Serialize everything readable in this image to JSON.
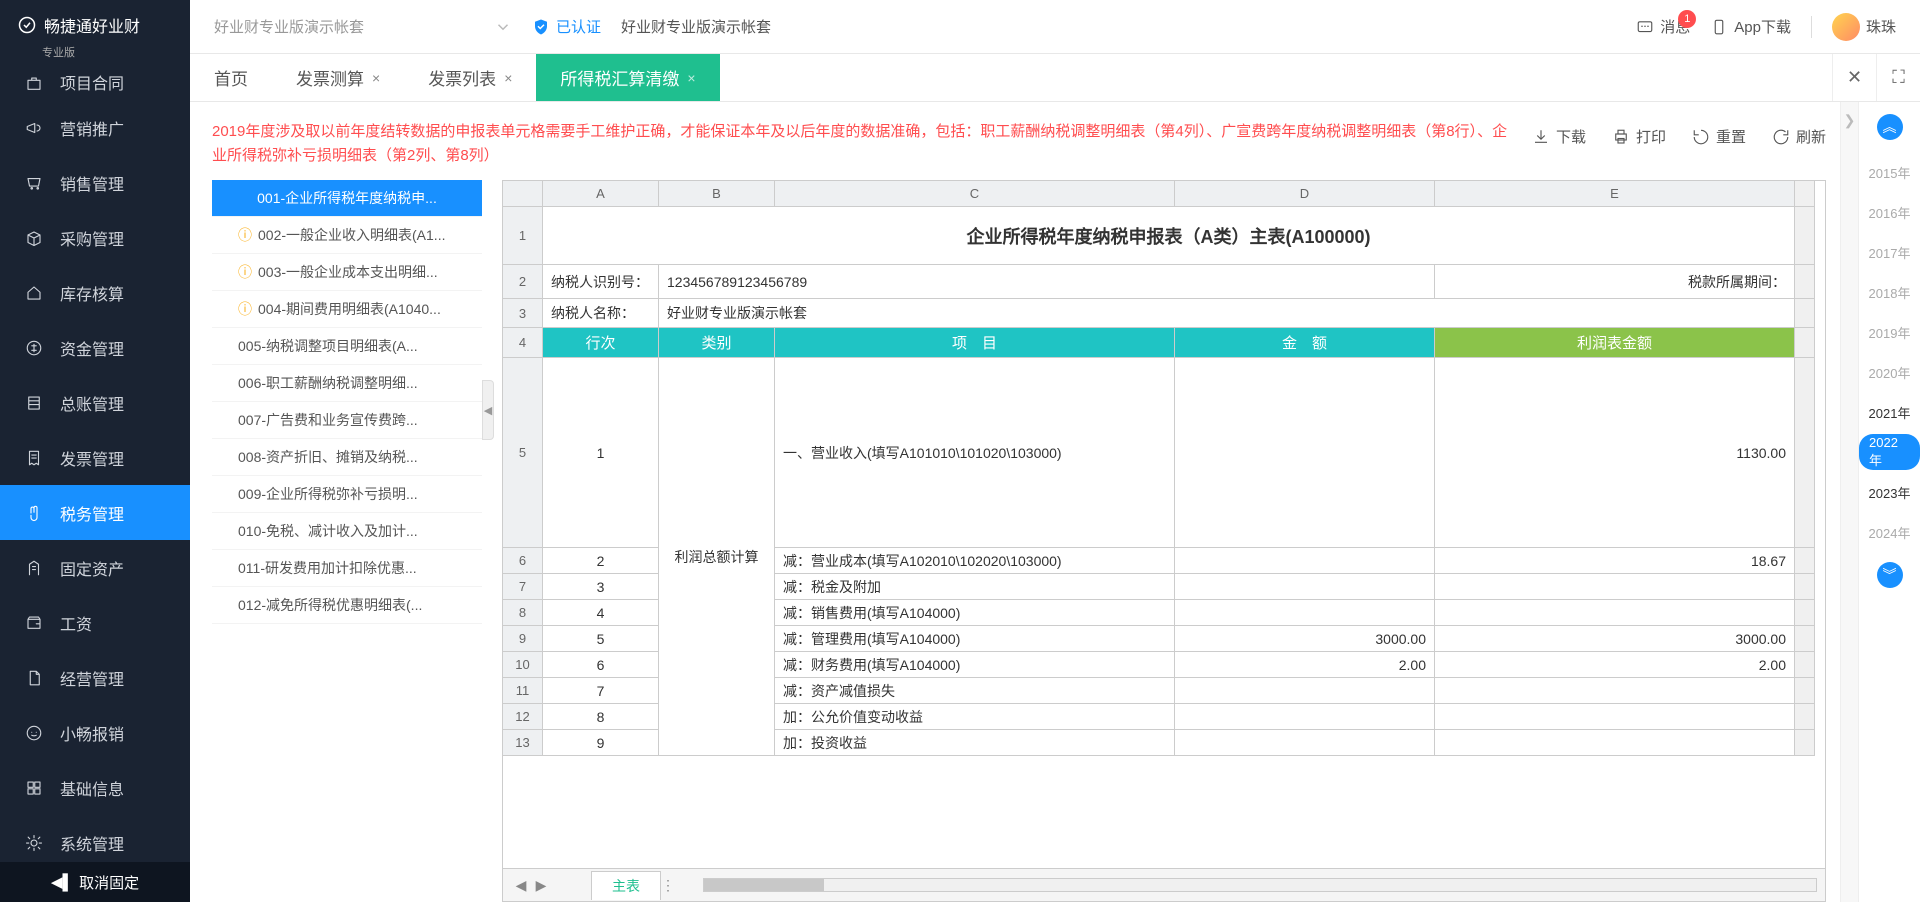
{
  "brand": {
    "name": "畅捷通好业财",
    "edition": "专业版"
  },
  "topbar": {
    "account_selector": "好业财专业版演示帐套",
    "verified": "已认证",
    "account_name": "好业财专业版演示帐套",
    "msg": "消息",
    "msg_badge": "1",
    "app": "App下载",
    "user": "珠珠"
  },
  "nav": [
    {
      "icon": "briefcase",
      "label": "项目合同"
    },
    {
      "icon": "megaphone",
      "label": "营销推广"
    },
    {
      "icon": "cart",
      "label": "销售管理"
    },
    {
      "icon": "box",
      "label": "采购管理"
    },
    {
      "icon": "home",
      "label": "库存核算"
    },
    {
      "icon": "coin",
      "label": "资金管理"
    },
    {
      "icon": "ledger",
      "label": "总账管理"
    },
    {
      "icon": "receipt",
      "label": "发票管理"
    },
    {
      "icon": "hand",
      "label": "税务管理"
    },
    {
      "icon": "building",
      "label": "固定资产"
    },
    {
      "icon": "wallet",
      "label": "工资"
    },
    {
      "icon": "doc",
      "label": "经营管理"
    },
    {
      "icon": "bot",
      "label": "小畅报销"
    },
    {
      "icon": "grid",
      "label": "基础信息"
    },
    {
      "icon": "gear",
      "label": "系统管理"
    }
  ],
  "nav_active_index": 8,
  "pin": "取消固定",
  "tabs": [
    {
      "label": "首页",
      "closable": false
    },
    {
      "label": "发票测算",
      "closable": true
    },
    {
      "label": "发票列表",
      "closable": true
    },
    {
      "label": "所得税汇算清缴",
      "closable": true,
      "active": true
    }
  ],
  "warning": "2019年度涉及取以前年度结转数据的申报表单元格需要手工维护正确，才能保证本年及以后年度的数据准确，包括：职工薪酬纳税调整明细表（第4列）、广宣费跨年度纳税调整明细表（第8行）、企业所得税弥补亏损明细表（第2列、第8列）",
  "actions": {
    "download": "下载",
    "print": "打印",
    "reset": "重置",
    "refresh": "刷新"
  },
  "tree": [
    {
      "label": "001-企业所得税年度纳税申...",
      "sel": true
    },
    {
      "label": "002-一般企业收入明细表(A1...",
      "warn": true
    },
    {
      "label": "003-一般企业成本支出明细...",
      "warn": true
    },
    {
      "label": "004-期间费用明细表(A1040...",
      "warn": true
    },
    {
      "label": "005-纳税调整项目明细表(A..."
    },
    {
      "label": "006-职工薪酬纳税调整明细..."
    },
    {
      "label": "007-广告费和业务宣传费跨..."
    },
    {
      "label": "008-资产折旧、摊销及纳税..."
    },
    {
      "label": "009-企业所得税弥补亏损明..."
    },
    {
      "label": "010-免税、减计收入及加计..."
    },
    {
      "label": "011-研发费用加计扣除优惠..."
    },
    {
      "label": "012-减免所得税优惠明细表(..."
    }
  ],
  "sheet": {
    "columns": [
      "",
      "A",
      "B",
      "C",
      "D",
      "E"
    ],
    "title": "企业所得税年度纳税申报表（A类）主表(A100000)",
    "taxid_label": "纳税人识别号：",
    "taxid": "123456789123456789",
    "period_label": "税款所属期间：",
    "taxpayer_label": "纳税人名称：",
    "taxpayer": "好业财专业版演示帐套",
    "headers": {
      "A": "行次",
      "B": "类别",
      "C": "项　目",
      "D": "金　额",
      "E": "利润表金额"
    },
    "cat": "利润总额计算",
    "rows": [
      {
        "r": 5,
        "n": "1",
        "item": "一、营业收入(填写A101010\\101020\\103000)",
        "d": "",
        "e": "1130.00",
        "tall": true
      },
      {
        "r": 6,
        "n": "2",
        "item": "减：营业成本(填写A102010\\102020\\103000)",
        "d": "",
        "e": "18.67"
      },
      {
        "r": 7,
        "n": "3",
        "item": "减：税金及附加",
        "d": "",
        "e": ""
      },
      {
        "r": 8,
        "n": "4",
        "item": "减：销售费用(填写A104000)",
        "d": "",
        "e": ""
      },
      {
        "r": 9,
        "n": "5",
        "item": "减：管理费用(填写A104000)",
        "d": "3000.00",
        "e": "3000.00"
      },
      {
        "r": 10,
        "n": "6",
        "item": "减：财务费用(填写A104000)",
        "d": "2.00",
        "e": "2.00"
      },
      {
        "r": 11,
        "n": "7",
        "item": "减：资产减值损失",
        "d": "",
        "e": ""
      },
      {
        "r": 12,
        "n": "8",
        "item": "加：公允价值变动收益",
        "d": "",
        "e": ""
      },
      {
        "r": 13,
        "n": "9",
        "item": "加：投资收益",
        "d": "",
        "e": ""
      }
    ],
    "tab": "主表"
  },
  "years": [
    "2015年",
    "2016年",
    "2017年",
    "2018年",
    "2019年",
    "2020年",
    "2021年",
    "2022年",
    "2023年",
    "2024年"
  ],
  "year_active": "2022年",
  "year_avail": [
    "2021年",
    "2023年"
  ]
}
